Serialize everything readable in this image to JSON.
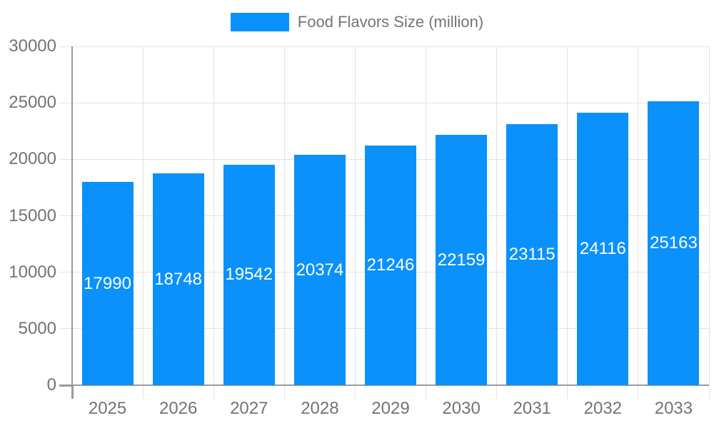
{
  "legend": {
    "label": "Food Flavors Size (million)"
  },
  "chart_data": {
    "type": "bar",
    "title": "Food Flavors Size (million)",
    "categories": [
      "2025",
      "2026",
      "2027",
      "2028",
      "2029",
      "2030",
      "2031",
      "2032",
      "2033"
    ],
    "values": [
      17990,
      18748,
      19542,
      20374,
      21246,
      22159,
      23115,
      24116,
      25163
    ],
    "xlabel": "",
    "ylabel": "",
    "ylim": [
      0,
      30000
    ],
    "y_ticks": [
      0,
      5000,
      10000,
      15000,
      20000,
      25000,
      30000
    ],
    "grid": true,
    "legend_position": "top",
    "value_label_position": "inside-center",
    "colors": {
      "bar": "#0a91fb",
      "grid": "#e3e3e3",
      "axis": "#9a9a9a",
      "tick_label": "#737373",
      "value_label": "#ffffff",
      "legend_label": "#757575",
      "background": "#ffffff"
    }
  }
}
